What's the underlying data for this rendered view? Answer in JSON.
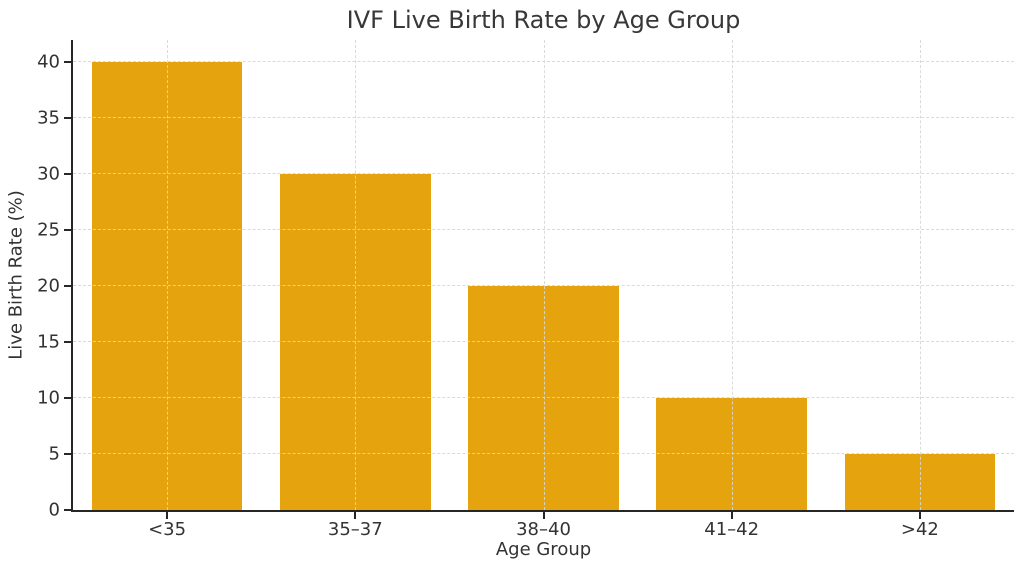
{
  "chart_data": {
    "type": "bar",
    "title": "IVF Live Birth Rate by Age Group",
    "xlabel": "Age Group",
    "ylabel": "Live Birth Rate (%)",
    "categories": [
      "<35",
      "35–37",
      "38–40",
      "41–42",
      ">42"
    ],
    "values": [
      40,
      30,
      20,
      10,
      5
    ],
    "yticks": [
      0,
      5,
      10,
      15,
      20,
      25,
      30,
      35,
      40
    ],
    "ylim": [
      0,
      42
    ],
    "bar_color": "#E5A40D",
    "bar_width_fraction": 0.8,
    "grid": true,
    "grid_color": "#d6d6d6",
    "axis_color": "#262626",
    "text_color": "#333333",
    "background": "#ffffff",
    "legend": null
  }
}
